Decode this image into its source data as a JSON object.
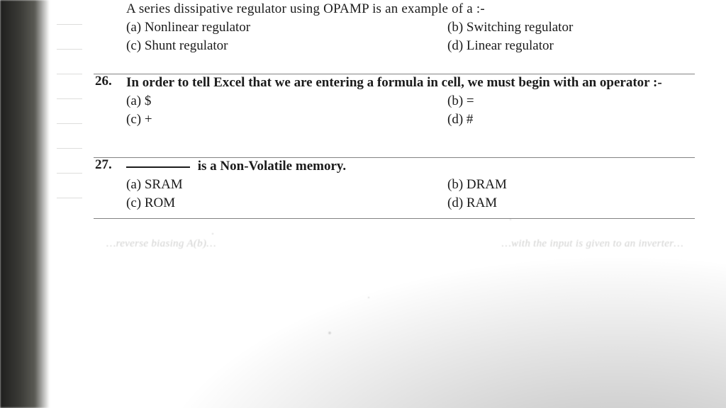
{
  "colors": {
    "ink": "#1b1b1b",
    "rule": "rgba(30,30,28,.55)",
    "paper_light": "#ecead f",
    "paper_mid": "#d6d4c9",
    "paper_dark": "#a6a49a",
    "spine": "#1f1f1e"
  },
  "typography": {
    "family": "Times New Roman",
    "stem_pt": 19,
    "opt_pt": 19,
    "weight_stem": 700
  },
  "questions": {
    "q25": {
      "number": "",
      "lead_in_fragment": "A series dissipative regulator using OPAMP is an example of a :-",
      "options": {
        "a": "(a) Nonlinear regulator",
        "b": "(b) Switching regulator",
        "c": "(c) Shunt regulator",
        "d": "(d) Linear regulator"
      }
    },
    "q26": {
      "number": "26.",
      "stem": "In order to tell Excel that we are entering a formula in cell, we must begin with an operator :-",
      "options": {
        "a": "(a) $",
        "b": "(b) =",
        "c": "(c) +",
        "d": "(d) #"
      }
    },
    "q27": {
      "number": "27.",
      "stem_after_blank": "is a Non-Volatile memory.",
      "options": {
        "a": "(a) SRAM",
        "b": "(b) DRAM",
        "c": "(c) ROM",
        "d": "(d) RAM"
      }
    }
  },
  "ghost": {
    "left": "…reverse biasing A(b)…",
    "right": "…with the input is given to an inverter…"
  }
}
